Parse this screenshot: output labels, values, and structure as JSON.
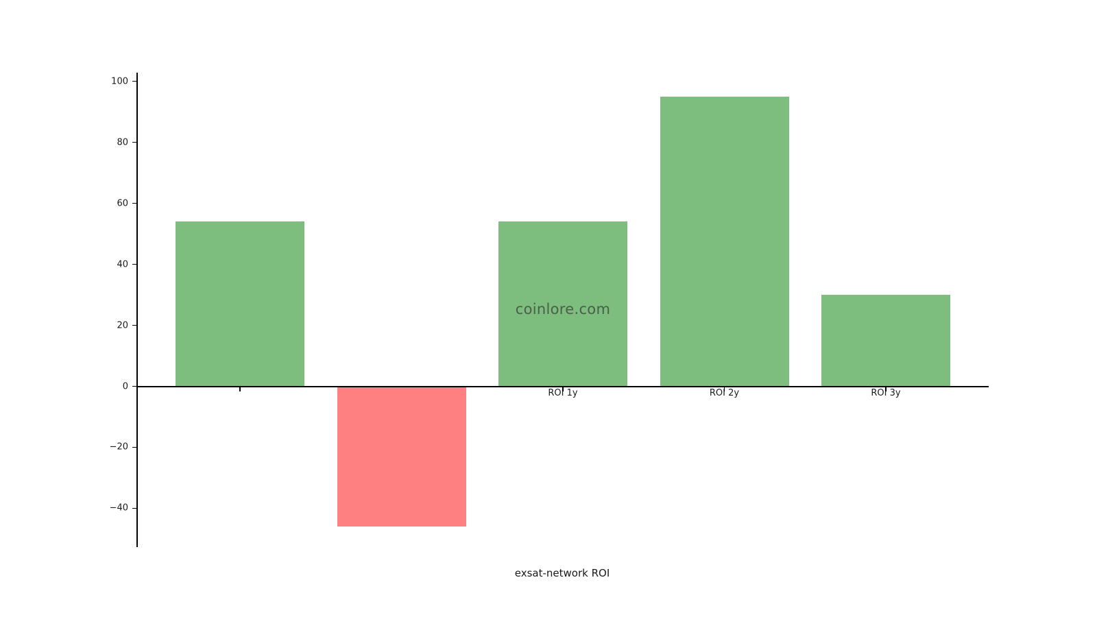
{
  "watermark": {
    "text": "coinlore.com"
  },
  "chart_data": {
    "type": "bar",
    "categories": [
      "",
      "",
      "ROI 1y",
      "ROI 2y",
      "ROI 3y"
    ],
    "values": [
      54,
      -46,
      54,
      95,
      30
    ],
    "bar_colors": [
      "#7dbd7d",
      "#ff8080",
      "#7dbd7d",
      "#7dbd7d",
      "#7dbd7d"
    ],
    "positive_color": "#7dbd7d",
    "negative_color": "#ff8080",
    "title": "",
    "xlabel": "exsat-network ROI",
    "ylabel": "",
    "yticks": [
      100,
      80,
      60,
      40,
      20,
      0,
      -20,
      -40
    ],
    "ylim": [
      -53,
      103
    ],
    "grid": false,
    "legend": null,
    "axis_color": "#000000",
    "tick_text_color": "#1a1a1a"
  }
}
